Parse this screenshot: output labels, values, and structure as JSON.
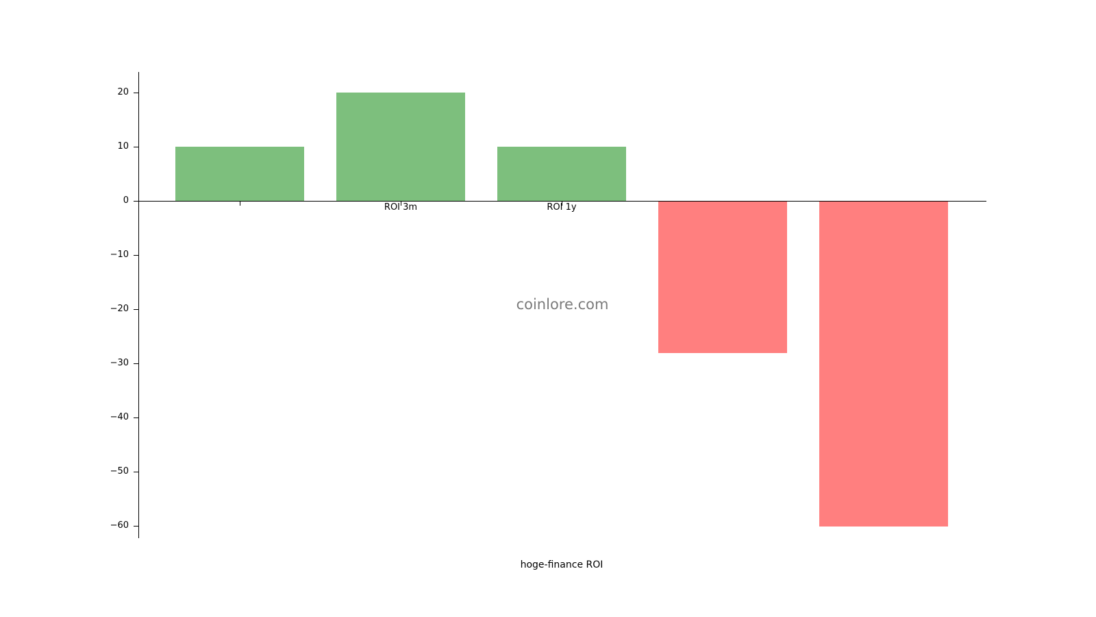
{
  "chart_data": {
    "type": "bar",
    "title": "hoge-finance ROI",
    "xlabel": "hoge-finance ROI",
    "ylabel": "",
    "watermark": "coinlore.com",
    "categories": [
      "",
      "ROI 3m",
      "ROI 1y",
      "",
      ""
    ],
    "values": [
      10,
      20,
      10,
      -28,
      -60
    ],
    "bar_colors": [
      "#7dbf7d",
      "#7dbf7d",
      "#7dbf7d",
      "#ff7f7f",
      "#ff7f7f"
    ],
    "positive_color": "#7dbf7d",
    "negative_color": "#ff7f7f",
    "y_ticks": [
      20,
      10,
      0,
      -10,
      -20,
      -30,
      -40,
      -50,
      -60
    ],
    "ylim": [
      -62,
      24
    ],
    "grid": false,
    "legend": "none",
    "axis_color": "#000000",
    "watermark_color": "#7b7b7b"
  }
}
